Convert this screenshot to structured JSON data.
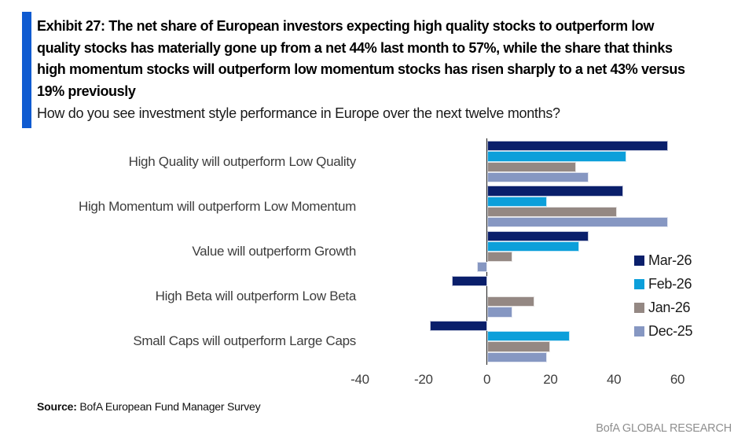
{
  "colors": {
    "accent_bar": "#0F5BD1",
    "axis_line": "#1a1a1a",
    "brand_text": "#8F8F8F"
  },
  "header": {
    "exhibit_title_lines": [
      "Exhibit 27: The net share of European investors expecting high quality stocks to outperform low",
      "quality stocks has materially gone up from a net 44% last month to 57%, while the share that thinks",
      "high momentum stocks will outperform low momentum stocks has risen sharply to a net 43% versus",
      "19% previously"
    ],
    "subtitle": "How do you see investment style performance in Europe over the next twelve months?"
  },
  "chart_data": {
    "type": "bar",
    "orientation": "horizontal",
    "title": "How do you see investment style performance in Europe over the next twelve months?",
    "categories": [
      "High Quality will outperform Low Quality",
      "High Momentum will outperform Low Momentum",
      "Value will outperform Growth",
      "High Beta will outperform Low Beta",
      "Small Caps will outperform Large Caps"
    ],
    "series": [
      {
        "name": "Mar-26",
        "color": "#0A1F6B",
        "values": [
          57,
          43,
          32,
          -11,
          -18
        ]
      },
      {
        "name": "Feb-26",
        "color": "#0C9FDA",
        "values": [
          44,
          19,
          29,
          0,
          26
        ]
      },
      {
        "name": "Jan-26",
        "color": "#948883",
        "values": [
          28,
          41,
          8,
          15,
          20
        ]
      },
      {
        "name": "Dec-25",
        "color": "#8697C2",
        "values": [
          32,
          57,
          -3,
          8,
          19
        ]
      }
    ],
    "x_ticks": [
      -40,
      -20,
      0,
      20,
      40,
      60
    ],
    "xlim": [
      -40,
      60
    ],
    "grid": false,
    "legend_position": "inside-right"
  },
  "footer": {
    "source_label": "Source:",
    "source_text": " BofA European Fund Manager Survey",
    "brand": "BofA GLOBAL RESEARCH"
  }
}
